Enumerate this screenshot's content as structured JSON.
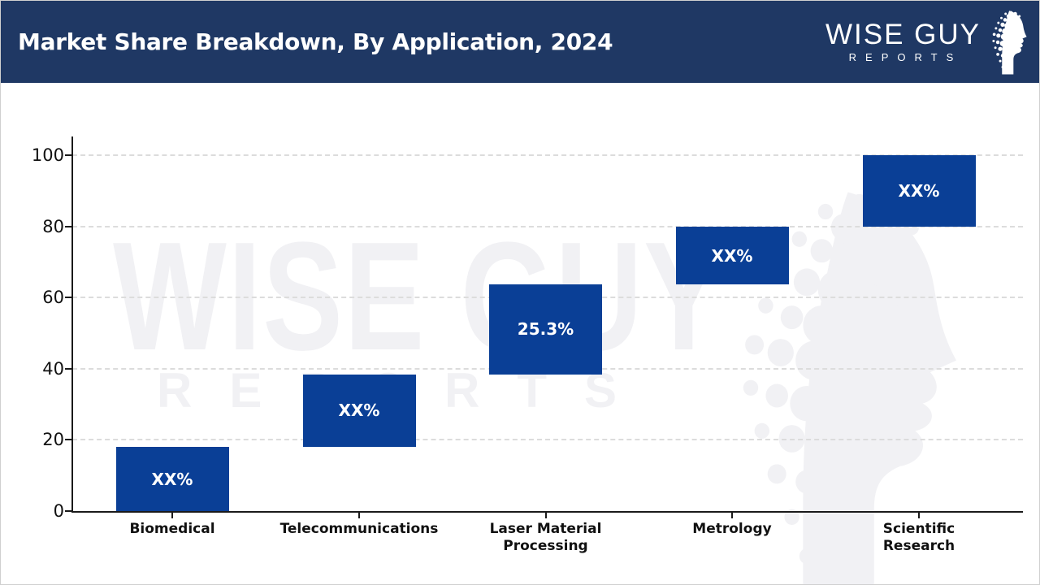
{
  "header": {
    "title": "Market Share Breakdown, By Application, 2024",
    "logo": {
      "brand": "WISE GUY",
      "sub": "REPORTS"
    }
  },
  "watermark": {
    "brand": "WISE GUY",
    "sub": "REPORTS"
  },
  "colors": {
    "header_bg": "#1f3864",
    "bar": "#0a3f96",
    "grid": "#dcdcdc",
    "axis": "#1a1a1a",
    "bar_label_text": "#ffffff",
    "watermark": "#f1f1f4",
    "page_border": "#d0d0d0"
  },
  "chart_data": {
    "type": "bar",
    "subtype": "floating-waterfall",
    "title": "Market Share Breakdown, By Application, 2024",
    "categories": [
      "Biomedical",
      "Telecommunications",
      "Laser Material Processing",
      "Metrology",
      "Scientific Research"
    ],
    "categories_display": [
      [
        "Biomedical"
      ],
      [
        "Telecommunications"
      ],
      [
        "Laser Material",
        "Processing"
      ],
      [
        "Metrology"
      ],
      [
        "Scientific",
        "Research"
      ]
    ],
    "series": [
      {
        "name": "Market share (%)",
        "starts": [
          0,
          18,
          38.4,
          63.7,
          79.9
        ],
        "ends": [
          18,
          38.4,
          63.7,
          79.9,
          100
        ],
        "labels": [
          "XX%",
          "XX%",
          "25.3%",
          "XX%",
          "XX%"
        ]
      }
    ],
    "ylim": [
      0,
      100
    ],
    "yticks": [
      0,
      20,
      40,
      60,
      80,
      100
    ],
    "xlabel": "",
    "ylabel": "",
    "grid": "horizontal-dashed",
    "legend": "none"
  }
}
